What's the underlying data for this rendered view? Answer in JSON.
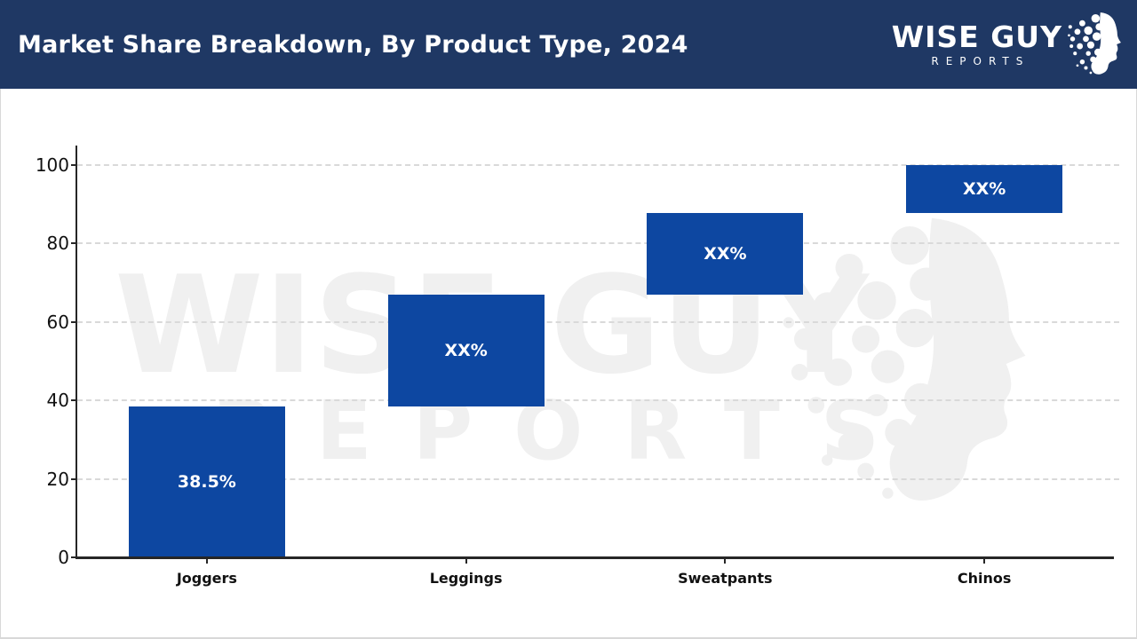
{
  "header": {
    "title": "Market Share Breakdown, By Product Type, 2024",
    "logo_line1": "WISE GUY",
    "logo_line2": "REPORTS"
  },
  "watermark": {
    "line1": "WISE GUY",
    "line2": "REPORTS"
  },
  "chart_data": {
    "type": "bar",
    "subtype": "floating-waterfall-bars",
    "title": "Market Share Breakdown, By Product Type, 2024",
    "categories": [
      "Joggers",
      "Leggings",
      "Sweatpants",
      "Chinos"
    ],
    "bars": [
      {
        "category": "Joggers",
        "start": 0,
        "end": 38.5,
        "label": "38.5%"
      },
      {
        "category": "Leggings",
        "start": 38.5,
        "end": 67,
        "label": "XX%"
      },
      {
        "category": "Sweatpants",
        "start": 67,
        "end": 87.7,
        "label": "XX%"
      },
      {
        "category": "Chinos",
        "start": 87.7,
        "end": 100,
        "label": "XX%"
      }
    ],
    "yticks": [
      0,
      20,
      40,
      60,
      80,
      100
    ],
    "ylim": [
      0,
      105
    ],
    "xlabel": "",
    "ylabel": "",
    "grid": "horizontal-dashed",
    "legend": "none",
    "bar_color": "#0d47a1",
    "bar_label_color": "#ffffff"
  },
  "colors": {
    "header_bg": "#1f3864",
    "bar": "#0d47a1",
    "axis": "#262626",
    "gridline": "#d9d9d9",
    "tick_label": "#111111",
    "watermark": "#f0f0f0",
    "page_border": "#d8d8d8"
  }
}
